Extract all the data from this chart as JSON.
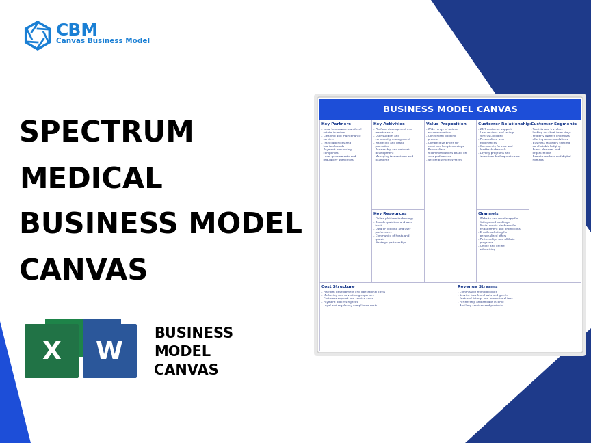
{
  "bg_color": "#ffffff",
  "blue_dark": "#1e3a8a",
  "blue_bright": "#1a7fd4",
  "blue_mid": "#1d4ed8",
  "title": "BUSINESS MODEL CANVAS",
  "main_title_lines": [
    "SPECTRUM",
    "MEDICAL",
    "BUSINESS MODEL",
    "CANVAS"
  ],
  "cbm_title": "CBM",
  "cbm_subtitle": "Canvas Business Model",
  "bottom_text_lines": [
    "BUSINESS",
    "MODEL",
    "CANVAS"
  ],
  "cells": {
    "key_partners": {
      "title": "Key Partners",
      "content": "- Local homeowners and real\n  estate investors\n- Cleaning and maintenance\n  services\n- Travel agencies and\n  tourism boards\n- Payment processing\n  companies\n- Local governments and\n  regulatory authorities"
    },
    "key_activities": {
      "title": "Key Activities",
      "content": "- Platform development and\n  maintenance\n- User support and\n  community management\n- Marketing and brand\n  promotion\n- Partnership and network\n  development\n- Managing transactions and\n  payments"
    },
    "value_proposition": {
      "title": "Value Proposition",
      "content": "- Wide range of unique\n  accommodations\n- Convenient booking\n  process\n- Competitive prices for\n  short and long-term stays\n- Personalized\n  recommendations based on\n  user preferences\n- Secure payment system"
    },
    "customer_relationships": {
      "title": "Customer Relationships",
      "content": "- 24/7 customer support\n- User reviews and ratings\n  for trust-building\n- Personalized user\n  experiences\n- Community forums and\n  feedback channels\n- Loyalty programs and\n  incentives for frequent users"
    },
    "customer_segments": {
      "title": "Customer Segments",
      "content": "- Tourists and travelers\n  looking for short-term stays\n- Property owners and hosts\n  offering accommodations\n- Business travelers seeking\n  comfortable lodging\n- Event planners and\n  organizations\n- Remote workers and digital\n  nomads"
    },
    "key_resources": {
      "title": "Key Resources",
      "content": "- Online platform technology\n- Brand reputation and user\n  trust\n- Data on lodging and user\n  preferences\n- Community of hosts and\n  guests\n- Strategic partnerships"
    },
    "channels": {
      "title": "Channels",
      "content": "- Website and mobile app for\n  listings and bookings\n- Social media platforms for\n  engagement and promotions\n- Email marketing for\n  personalized offers\n- Partnerships and affiliate\n  programs\n- Online and offline\n  advertising"
    },
    "cost_structure": {
      "title": "Cost Structure",
      "content": "- Platform development and operational costs\n- Marketing and advertising expenses\n- Customer support and service costs\n- Payment processing fees\n- Legal and regulatory compliance costs"
    },
    "revenue_streams": {
      "title": "Revenue Streams",
      "content": "- Commission from bookings\n- Service fees from hosts and guests\n- Featured listings and promotional fees\n- Partnership and affiliate income\n- Ancillary services and products"
    }
  }
}
